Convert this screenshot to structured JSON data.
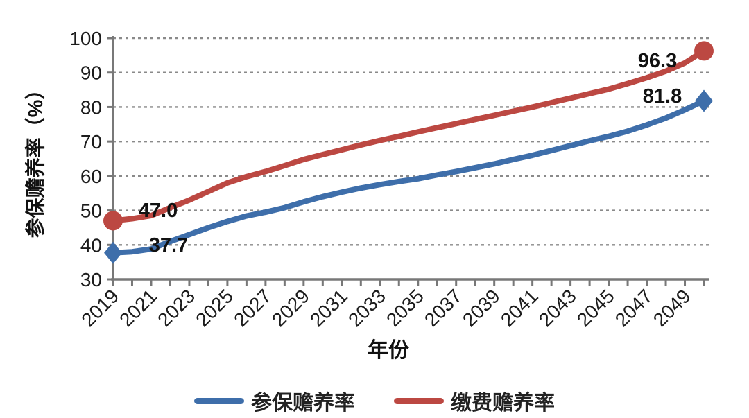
{
  "chart_data": {
    "type": "line",
    "title": "",
    "xlabel": "年份",
    "ylabel": "参保赡养率（%）",
    "x": [
      2019,
      2020,
      2021,
      2022,
      2023,
      2024,
      2025,
      2026,
      2027,
      2028,
      2029,
      2030,
      2031,
      2032,
      2033,
      2034,
      2035,
      2036,
      2037,
      2038,
      2039,
      2040,
      2041,
      2042,
      2043,
      2044,
      2045,
      2046,
      2047,
      2048,
      2049,
      2050
    ],
    "x_tick_labels": [
      "2019",
      "2021",
      "2023",
      "2025",
      "2027",
      "2029",
      "2031",
      "2033",
      "2035",
      "2037",
      "2039",
      "2041",
      "2043",
      "2045",
      "2047",
      "2049"
    ],
    "ylim": [
      30,
      100
    ],
    "ytick_step": 10,
    "grid": "horizontal-dotted",
    "legend_position": "bottom",
    "series": [
      {
        "name": "参保赡养率",
        "color": "#3e6eaa",
        "marker": "diamond",
        "values": [
          37.7,
          38.0,
          38.8,
          41.0,
          43.0,
          45.0,
          46.8,
          48.4,
          49.5,
          50.8,
          52.5,
          54.0,
          55.3,
          56.5,
          57.5,
          58.4,
          59.2,
          60.3,
          61.3,
          62.4,
          63.5,
          64.8,
          66.0,
          67.4,
          68.8,
          70.2,
          71.5,
          73.0,
          74.8,
          76.8,
          79.2,
          81.8
        ]
      },
      {
        "name": "缴费赡养率",
        "color": "#bc4842",
        "marker": "circle",
        "values": [
          47.0,
          47.6,
          48.5,
          50.8,
          53.0,
          55.5,
          58.0,
          59.8,
          61.3,
          63.0,
          64.8,
          66.2,
          67.6,
          69.0,
          70.3,
          71.5,
          72.8,
          74.0,
          75.2,
          76.4,
          77.6,
          78.8,
          80.0,
          81.3,
          82.6,
          83.9,
          85.2,
          86.8,
          88.5,
          90.4,
          92.8,
          96.3
        ]
      }
    ],
    "annotations": [
      {
        "text": "47.0",
        "series": "缴费赡养率",
        "x": 2019,
        "y": 47.0
      },
      {
        "text": "37.7",
        "series": "参保赡养率",
        "x": 2019,
        "y": 37.7
      },
      {
        "text": "96.3",
        "series": "缴费赡养率",
        "x": 2050,
        "y": 96.3
      },
      {
        "text": "81.8",
        "series": "参保赡养率",
        "x": 2050,
        "y": 81.8
      }
    ],
    "colors": {
      "axis": "#787878",
      "gridline": "#8a8a8a",
      "text": "#1c1c1c"
    }
  }
}
